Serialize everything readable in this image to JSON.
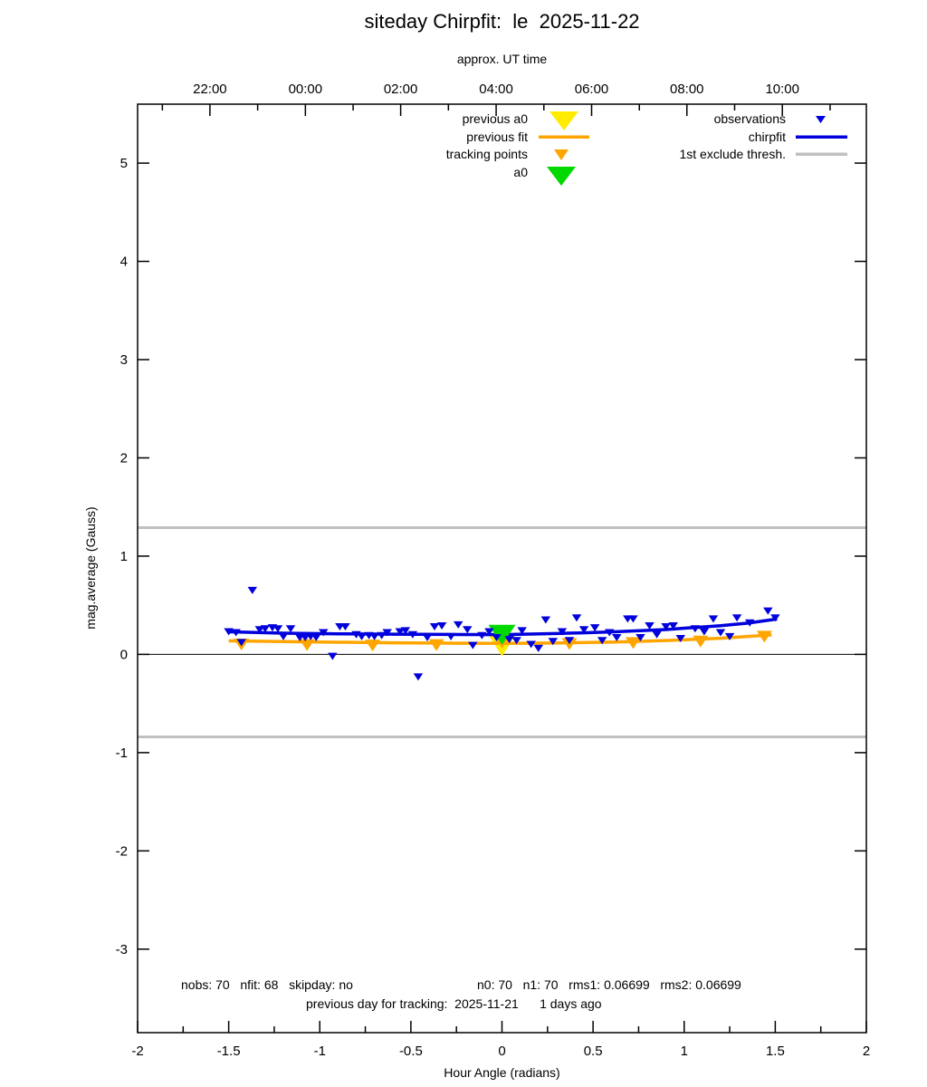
{
  "stats": {
    "line1_left": "nobs: 70   nfit: 68   skipday: no",
    "line1_right": "n0: 70   n1: 70   rms1: 0.06699   rms2: 0.06699",
    "line2": "previous day for tracking:  2025-11-21      1 days ago"
  },
  "colors": {
    "blue": "#0000dd",
    "orange": "#ffa500",
    "yellow": "#ffec00",
    "green": "#00d900",
    "gray": "#c0c0c0",
    "black": "#000000"
  },
  "legend": {
    "left": [
      {
        "label": "previous a0"
      },
      {
        "label": "previous fit"
      },
      {
        "label": "tracking points"
      },
      {
        "label": "a0"
      }
    ],
    "right": [
      {
        "label": "observations"
      },
      {
        "label": "chirpfit"
      },
      {
        "label": "1st exclude thresh."
      }
    ]
  },
  "chart_data": {
    "type": "scatter",
    "title": "siteday Chirpfit:  le  2025-11-22",
    "x2label": "approx. UT time",
    "xlabel": "Hour Angle (radians)",
    "ylabel": "mag.average (Gauss)",
    "xlim": [
      -2,
      2
    ],
    "ylim": [
      -3.85,
      5.6
    ],
    "grid": false,
    "legend_position": "top-inside",
    "x_ticks": {
      "major": [
        -2,
        -1.5,
        -1,
        -0.5,
        0,
        0.5,
        1,
        1.5,
        2
      ],
      "labels": [
        "-2",
        "-1.5",
        "-1",
        "-0.5",
        "0",
        "0.5",
        "1",
        "1.5",
        "2"
      ],
      "minor": [
        -1.75,
        -1.25,
        -0.75,
        -0.25,
        0.25,
        0.75,
        1.25,
        1.75
      ]
    },
    "ut_ticks": {
      "major": [
        {
          "label": "22:00",
          "x": -1.603
        },
        {
          "label": "00:00",
          "x": -1.079
        },
        {
          "label": "02:00",
          "x": -0.556
        },
        {
          "label": "04:00",
          "x": -0.032
        },
        {
          "label": "06:00",
          "x": 0.492
        },
        {
          "label": "08:00",
          "x": 1.015
        },
        {
          "label": "10:00",
          "x": 1.539
        }
      ],
      "minor": [
        -1.864,
        -1.341,
        -0.817,
        -0.294,
        0.23,
        0.754,
        1.277,
        1.801
      ]
    },
    "y_ticks": {
      "major": [
        -3,
        -2,
        -1,
        0,
        1,
        2,
        3,
        4,
        5
      ],
      "labels": [
        "-3",
        "-2",
        "-1",
        "0",
        "1",
        "2",
        "3",
        "4",
        "5"
      ]
    },
    "exclude_thresholds": [
      1.29,
      -0.84
    ],
    "previous_a0": [
      0,
      0.09
    ],
    "a0": [
      0,
      0.2
    ],
    "tracking_points": [
      [
        -1.43,
        0.1
      ],
      [
        -1.07,
        0.095
      ],
      [
        -0.71,
        0.09
      ],
      [
        -0.36,
        0.095
      ],
      [
        0.0,
        0.12
      ],
      [
        0.37,
        0.105
      ],
      [
        0.72,
        0.115
      ],
      [
        1.09,
        0.13
      ],
      [
        1.44,
        0.18
      ]
    ],
    "previous_fit": [
      [
        -1.5,
        0.138
      ],
      [
        -1.2,
        0.13
      ],
      [
        -0.9,
        0.124
      ],
      [
        -0.6,
        0.118
      ],
      [
        -0.3,
        0.114
      ],
      [
        0,
        0.112
      ],
      [
        0.3,
        0.116
      ],
      [
        0.6,
        0.125
      ],
      [
        0.9,
        0.141
      ],
      [
        1.2,
        0.164
      ],
      [
        1.48,
        0.198
      ]
    ],
    "chirpfit": [
      [
        -1.5,
        0.23
      ],
      [
        -1.2,
        0.216
      ],
      [
        -0.9,
        0.209
      ],
      [
        -0.6,
        0.206
      ],
      [
        -0.3,
        0.203
      ],
      [
        0,
        0.201
      ],
      [
        0.3,
        0.212
      ],
      [
        0.6,
        0.228
      ],
      [
        0.9,
        0.253
      ],
      [
        1.2,
        0.292
      ],
      [
        1.35,
        0.318
      ],
      [
        1.51,
        0.36
      ]
    ],
    "observations": [
      [
        -1.5,
        0.23
      ],
      [
        -1.46,
        0.22
      ],
      [
        -1.43,
        0.12
      ],
      [
        -1.37,
        0.65
      ],
      [
        -1.33,
        0.25
      ],
      [
        -1.3,
        0.26
      ],
      [
        -1.26,
        0.27
      ],
      [
        -1.23,
        0.26
      ],
      [
        -1.2,
        0.18
      ],
      [
        -1.16,
        0.26
      ],
      [
        -1.11,
        0.17
      ],
      [
        -1.08,
        0.17
      ],
      [
        -1.05,
        0.18
      ],
      [
        -1.02,
        0.17
      ],
      [
        -0.98,
        0.22
      ],
      [
        -0.93,
        -0.02
      ],
      [
        -0.89,
        0.28
      ],
      [
        -0.86,
        0.28
      ],
      [
        -0.8,
        0.2
      ],
      [
        -0.77,
        0.18
      ],
      [
        -0.73,
        0.19
      ],
      [
        -0.7,
        0.18
      ],
      [
        -0.66,
        0.19
      ],
      [
        -0.63,
        0.22
      ],
      [
        -0.56,
        0.23
      ],
      [
        -0.53,
        0.24
      ],
      [
        -0.49,
        0.2
      ],
      [
        -0.46,
        -0.23
      ],
      [
        -0.41,
        0.17
      ],
      [
        -0.37,
        0.28
      ],
      [
        -0.33,
        0.29
      ],
      [
        -0.28,
        0.18
      ],
      [
        -0.24,
        0.3
      ],
      [
        -0.19,
        0.25
      ],
      [
        -0.16,
        0.09
      ],
      [
        -0.11,
        0.19
      ],
      [
        -0.07,
        0.23
      ],
      [
        -0.03,
        0.17
      ],
      [
        0.04,
        0.15
      ],
      [
        0.08,
        0.14
      ],
      [
        0.11,
        0.24
      ],
      [
        0.16,
        0.1
      ],
      [
        0.2,
        0.06
      ],
      [
        0.24,
        0.35
      ],
      [
        0.28,
        0.13
      ],
      [
        0.33,
        0.23
      ],
      [
        0.37,
        0.14
      ],
      [
        0.41,
        0.37
      ],
      [
        0.45,
        0.25
      ],
      [
        0.51,
        0.27
      ],
      [
        0.55,
        0.14
      ],
      [
        0.59,
        0.22
      ],
      [
        0.63,
        0.17
      ],
      [
        0.69,
        0.36
      ],
      [
        0.72,
        0.36
      ],
      [
        0.76,
        0.17
      ],
      [
        0.81,
        0.29
      ],
      [
        0.85,
        0.2
      ],
      [
        0.9,
        0.28
      ],
      [
        0.94,
        0.29
      ],
      [
        0.98,
        0.16
      ],
      [
        1.06,
        0.26
      ],
      [
        1.11,
        0.23
      ],
      [
        1.16,
        0.36
      ],
      [
        1.2,
        0.22
      ],
      [
        1.25,
        0.18
      ],
      [
        1.29,
        0.37
      ],
      [
        1.36,
        0.32
      ],
      [
        1.46,
        0.44
      ],
      [
        1.5,
        0.37
      ]
    ]
  }
}
